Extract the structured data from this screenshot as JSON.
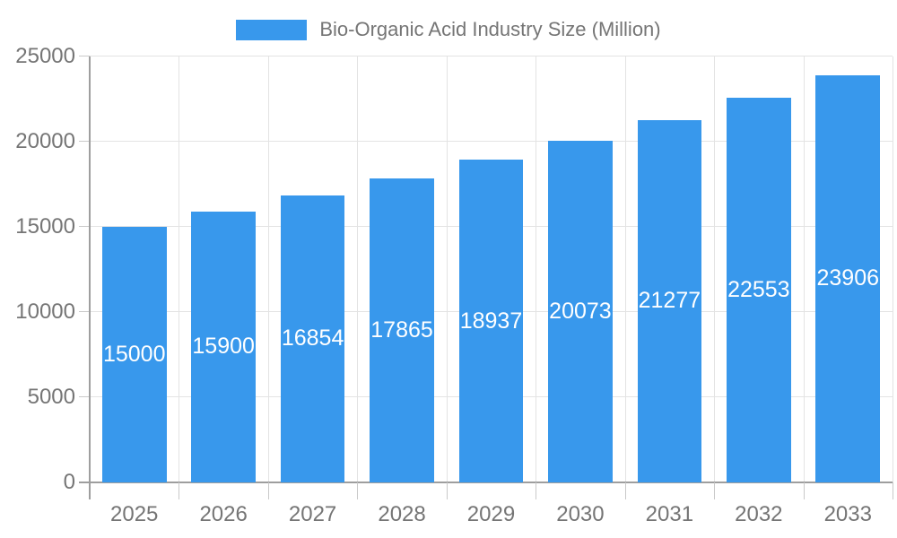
{
  "chart_data": {
    "type": "bar",
    "title": "Bio-Organic Acid Industry Size (Million)",
    "legend": {
      "position": "top",
      "label": "Bio-Organic Acid Industry Size (Million)"
    },
    "categories": [
      "2025",
      "2026",
      "2027",
      "2028",
      "2029",
      "2030",
      "2031",
      "2032",
      "2033"
    ],
    "series": [
      {
        "name": "Bio-Organic Acid Industry Size (Million)",
        "values": [
          15000,
          15900,
          16854,
          17865,
          18937,
          20073,
          21277,
          22553,
          23906
        ]
      }
    ],
    "value_labels": [
      "15000",
      "15900",
      "16854",
      "17865",
      "18937",
      "20073",
      "21277",
      "22553",
      "23906"
    ],
    "xlabel": "",
    "ylabel": "",
    "ylim": [
      0,
      25000
    ],
    "yticks": [
      0,
      5000,
      10000,
      15000,
      20000,
      25000
    ],
    "ytick_labels": [
      "0",
      "5000",
      "10000",
      "15000",
      "20000",
      "25000"
    ],
    "grid": true,
    "colors": {
      "bar": "#3898EC",
      "value_label": "#FFFFFF",
      "axis_text": "#757575",
      "grid_line": "#E3E3E3",
      "axis_line": "#9E9E9E",
      "tick": "#C9C9C9",
      "background": "#FFFFFF"
    }
  }
}
